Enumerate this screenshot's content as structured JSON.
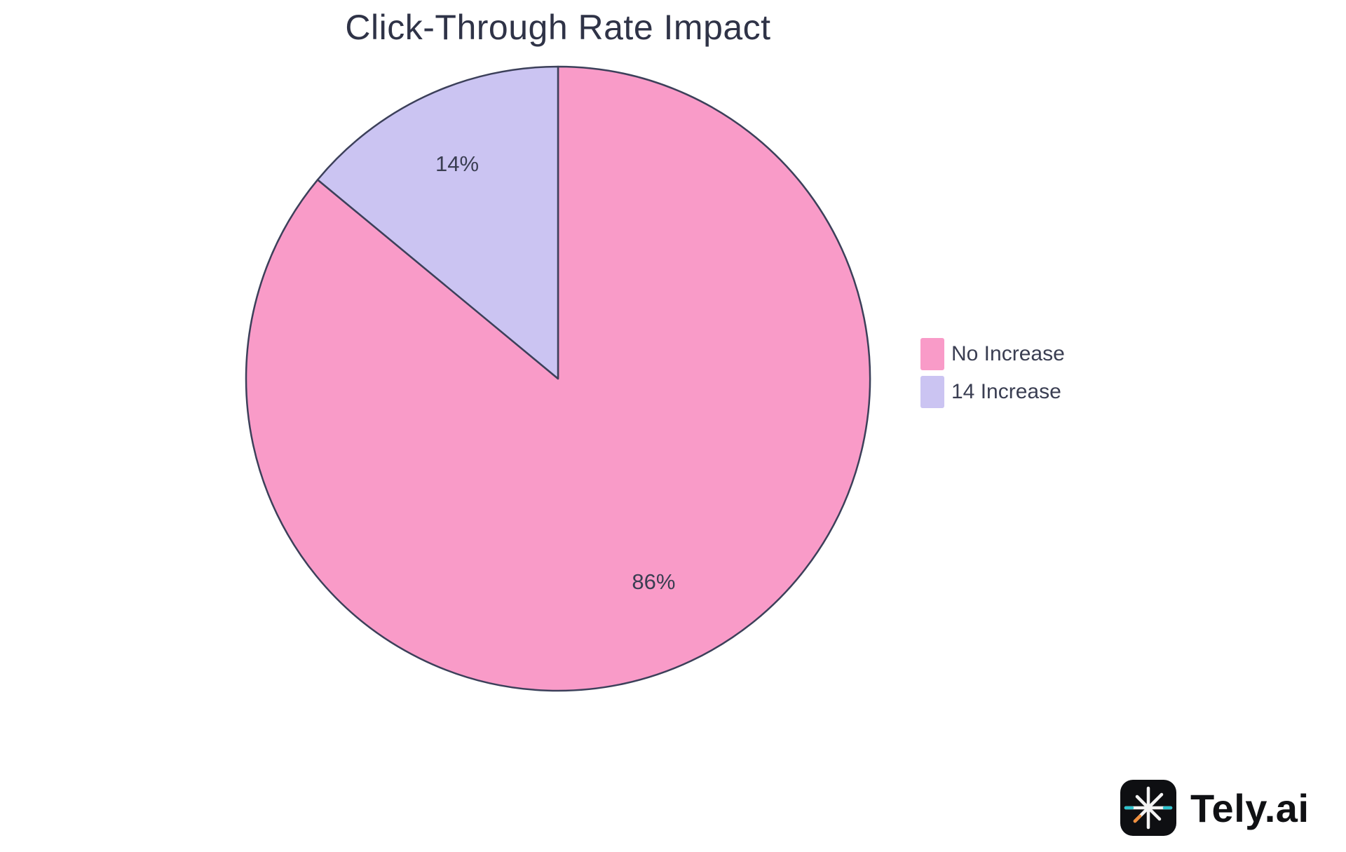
{
  "chart_data": {
    "type": "pie",
    "title": "Click-Through Rate Impact",
    "labels": [
      "No Increase",
      "14 Increase"
    ],
    "values": [
      86,
      14
    ],
    "slice_labels": [
      "86%",
      "14%"
    ],
    "colors": [
      "#F99BC8",
      "#CBC4F2"
    ],
    "outline_color": "#3C405A",
    "legend_position": "right",
    "start_angle": 0,
    "direction": "clockwise",
    "label_radii": [
      0.72,
      0.76
    ]
  },
  "legend": {
    "items": [
      {
        "label": "No Increase",
        "color": "#F99BC8"
      },
      {
        "label": "14 Increase",
        "color": "#CBC4F2"
      }
    ]
  },
  "branding": {
    "logo_text": "Tely.ai",
    "icon": "starburst-icon"
  }
}
